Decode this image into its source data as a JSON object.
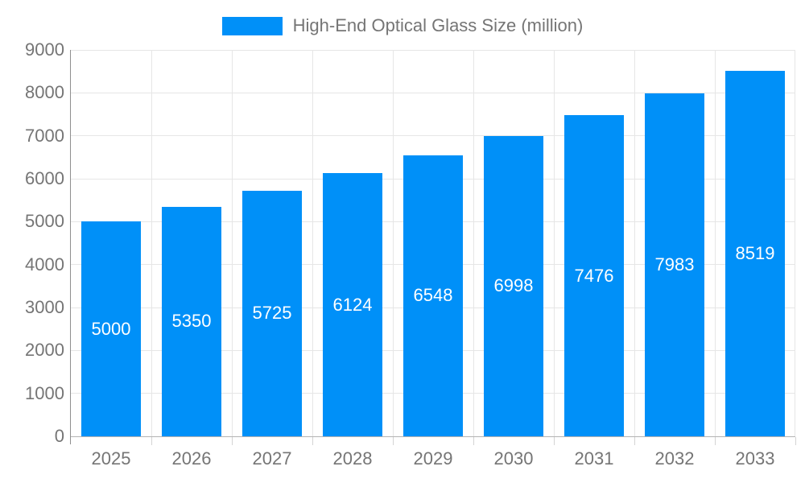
{
  "chart_data": {
    "type": "bar",
    "title": "High-End Optical Glass Size (million)",
    "legend": [
      "High-End Optical Glass Size (million)"
    ],
    "legend_position": "top",
    "categories": [
      "2025",
      "2026",
      "2027",
      "2028",
      "2029",
      "2030",
      "2031",
      "2032",
      "2033"
    ],
    "series": [
      {
        "name": "High-End Optical Glass Size (million)",
        "values": [
          5000,
          5350,
          5725,
          6124,
          6548,
          6998,
          7476,
          7983,
          8519
        ]
      }
    ],
    "data_labels_shown": true,
    "xlabel": "",
    "ylabel": "",
    "ylim": [
      0,
      9000
    ],
    "y_tick_step": 1000,
    "y_ticks": [
      0,
      1000,
      2000,
      3000,
      4000,
      5000,
      6000,
      7000,
      8000,
      9000
    ],
    "grid": true,
    "colors": {
      "bar": "#0090f8",
      "bar_label_text": "#ffffff",
      "axis_text": "#757575",
      "legend_text": "#757575",
      "gridline": "#e6e6e6",
      "axis_line": "#8f8f8f",
      "baseline": "#b3b3b3",
      "background": "#ffffff"
    }
  }
}
